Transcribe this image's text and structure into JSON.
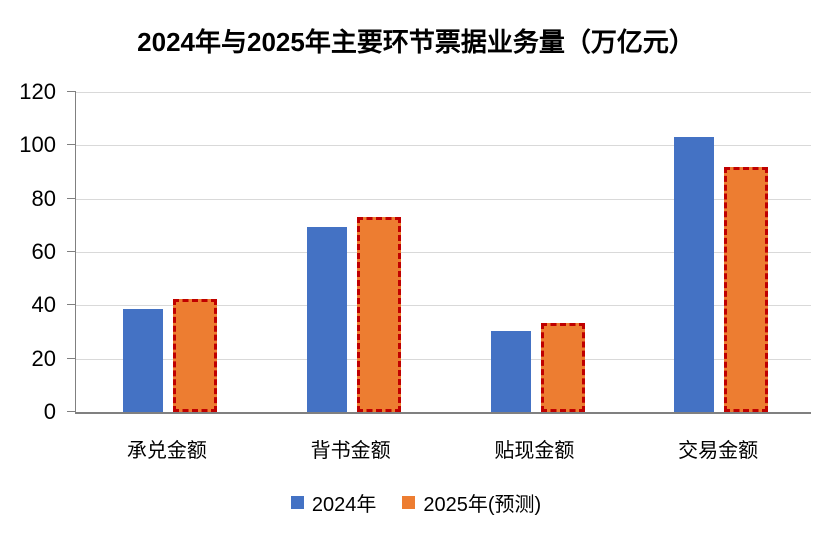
{
  "title": "2024年与2025年主要环节票据业务量（万亿元）",
  "colors": {
    "series_2024": "#4472C4",
    "series_2025": "#ED7D31",
    "forecast_border": "#C00000",
    "gridline": "#D9D9D9",
    "axis": "#808080",
    "text": "#000000"
  },
  "legend": [
    {
      "label": "2024年",
      "color": "#4472C4"
    },
    {
      "label": "2025年(预测)",
      "color": "#ED7D31"
    }
  ],
  "chart_data": {
    "type": "bar",
    "title": "2024年与2025年主要环节票据业务量（万亿元）",
    "categories": [
      "承兑金额",
      "背书金额",
      "贴现金额",
      "交易金额"
    ],
    "series": [
      {
        "name": "2024年",
        "values": [
          38.5,
          69.5,
          30.5,
          103
        ],
        "color": "#4472C4",
        "style": "solid"
      },
      {
        "name": "2025年(预测)",
        "values": [
          42.5,
          73,
          33.5,
          92
        ],
        "color": "#ED7D31",
        "style": "dashed-red-border"
      }
    ],
    "xlabel": "",
    "ylabel": "",
    "ylim": [
      0,
      120
    ],
    "yticks": [
      0,
      20,
      40,
      60,
      80,
      100,
      120
    ],
    "grid": true,
    "legend_position": "bottom"
  }
}
